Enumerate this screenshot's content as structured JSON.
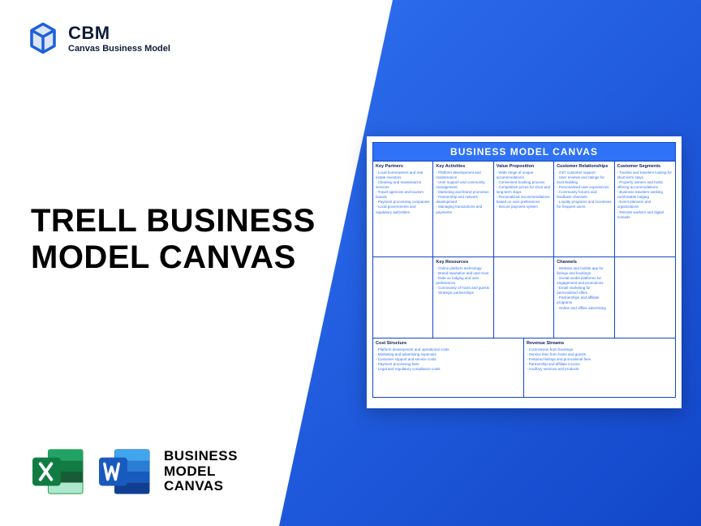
{
  "brand": {
    "name": "CBM",
    "subtitle": "Canvas Business Model",
    "logo_color": "#1d5fde"
  },
  "page_title_line1": "TRELL BUSINESS",
  "page_title_line2": "MODEL CANVAS",
  "apps_label_line1": "BUSINESS",
  "apps_label_line2": "MODEL",
  "apps_label_line3": "CANVAS",
  "canvas": {
    "title": "BUSINESS MODEL CANVAS",
    "colors": {
      "header_bg": "#2f72f7",
      "border": "#1246c9",
      "section_title": "#0a1e55",
      "bullet_text": "#2f72f7"
    },
    "sections": {
      "key_partners": {
        "title": "Key Partners",
        "items": [
          "- Local homeowners and real estate investors",
          "- Cleaning and maintenance services",
          "- Travel agencies and tourism boards",
          "- Payment processing companies",
          "- Local governments and regulatory authorities"
        ]
      },
      "key_activities": {
        "title": "Key Activities",
        "items": [
          "- Platform development and maintenance",
          "- User support and community management",
          "- Marketing and brand promotion",
          "- Partnership and network development",
          "- Managing transactions and payments"
        ]
      },
      "value_proposition": {
        "title": "Value Proposition",
        "items": [
          "- Wide range of unique accommodations",
          "- Convenient booking process",
          "- Competitive prices for short and long-term stays",
          "- Personalized recommendations based on user preferences",
          "- Secure payment system"
        ]
      },
      "customer_relationships": {
        "title": "Customer Relationships",
        "items": [
          "- 24/7 customer support",
          "- User reviews and ratings for trust-building",
          "- Personalized user experiences",
          "- Community forums and feedback channels",
          "- Loyalty programs and incentives for frequent users"
        ]
      },
      "customer_segments": {
        "title": "Customer Segments",
        "items": [
          "- Tourists and travelers looking for short-term stays",
          "- Property owners and hosts offering accommodations",
          "- Business travelers seeking comfortable lodging",
          "- Event planners and organizations",
          "- Remote workers and digital nomads"
        ]
      },
      "key_resources": {
        "title": "Key Resources",
        "items": [
          "- Online platform technology",
          "- Brand reputation and user trust",
          "- Data on lodging and user preferences",
          "- Community of hosts and guests",
          "- Strategic partnerships"
        ]
      },
      "channels": {
        "title": "Channels",
        "items": [
          "- Website and mobile app for listings and bookings",
          "- Social media platforms for engagement and promotions",
          "- Email marketing for personalized offers",
          "- Partnerships and affiliate programs",
          "- Online and offline advertising"
        ]
      },
      "cost_structure": {
        "title": "Cost Structure",
        "items": [
          "- Platform development and operational costs",
          "- Marketing and advertising expenses",
          "- Customer support and service costs",
          "- Payment processing fees",
          "- Legal and regulatory compliance costs"
        ]
      },
      "revenue_streams": {
        "title": "Revenue Streams",
        "items": [
          "- Commission from bookings",
          "- Service fees from hosts and guests",
          "- Featured listings and promotional fees",
          "- Partnership and affiliate income",
          "- Ancillary services and products"
        ]
      }
    }
  }
}
